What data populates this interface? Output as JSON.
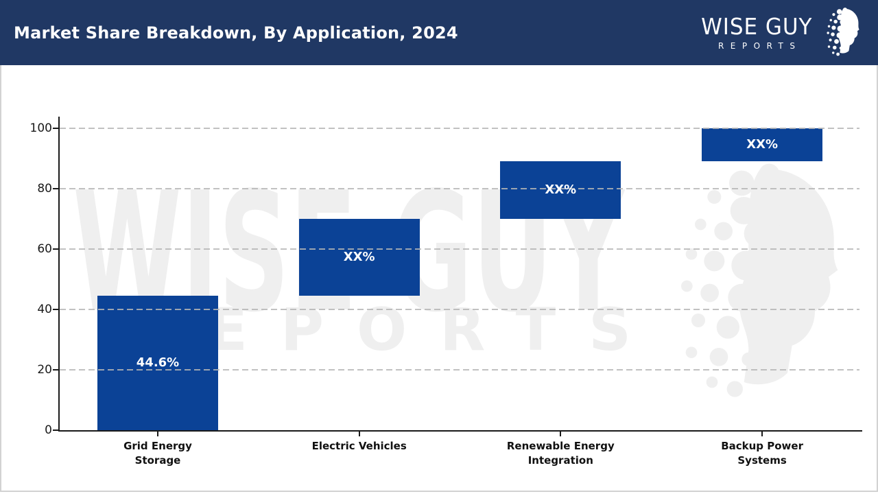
{
  "header": {
    "title": "Market Share Breakdown, By Application, 2024",
    "logo": {
      "wordmark": "WISE GUY",
      "subtext": "REPORTS"
    }
  },
  "watermark": {
    "wordmark": "WISE GUY",
    "subtext": "REPORTS"
  },
  "colors": {
    "header_bg": "#203864",
    "bar_blue": "#0b4296",
    "grid_gray": "#d6d6d6",
    "axis_black": "#1a1a1a",
    "bar_label_white": "#ffffff",
    "watermark_gray": "#efefef"
  },
  "chart_data": {
    "type": "bar",
    "subtype": "floating-waterfall",
    "title": "Market Share Breakdown, By Application, 2024",
    "xlabel": "",
    "ylabel": "",
    "ylim": [
      0,
      100
    ],
    "yticks": [
      0,
      20,
      40,
      60,
      80,
      100
    ],
    "grid": "horizontal-dashed",
    "legend": "none",
    "categories": [
      "Grid Energy\nStorage",
      "Electric Vehicles",
      "Renewable Energy\nIntegration",
      "Backup Power\nSystems"
    ],
    "segments": [
      {
        "category": "Grid Energy Storage",
        "start": 0,
        "end": 44.6,
        "value": 44.6,
        "label": "44.6%"
      },
      {
        "category": "Electric Vehicles",
        "start": 44.6,
        "end": 70.0,
        "value": 25.4,
        "label": "XX%"
      },
      {
        "category": "Renewable Energy Integration",
        "start": 70.0,
        "end": 89.2,
        "value": 19.2,
        "label": "XX%"
      },
      {
        "category": "Backup Power Systems",
        "start": 89.2,
        "end": 100.0,
        "value": 10.8,
        "label": "XX%"
      }
    ]
  }
}
